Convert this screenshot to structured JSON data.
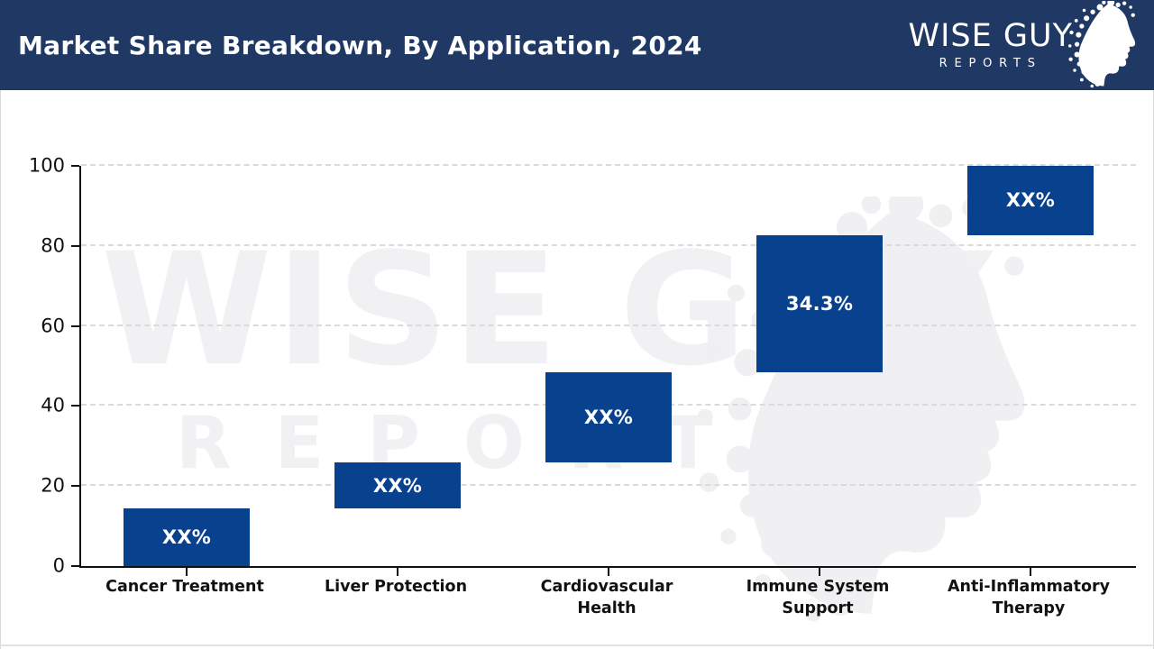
{
  "header": {
    "title": "Market Share Breakdown, By Application, 2024",
    "logo": {
      "line1": "WISE GUY",
      "line2": "REPORTS"
    }
  },
  "chart_data": {
    "type": "bar",
    "subtype": "waterfall-floating-bars",
    "title": "Market Share Breakdown, By Application, 2024",
    "categories": [
      "Cancer Treatment",
      "Liver Protection",
      "Cardiovascular Health",
      "Immune System Support",
      "Anti-Inflammatory Therapy"
    ],
    "segments": [
      {
        "category": "Cancer Treatment",
        "start": 0,
        "end": 14.5,
        "value": 14.5,
        "label": "XX%"
      },
      {
        "category": "Liver Protection",
        "start": 14.5,
        "end": 25.8,
        "value": 11.3,
        "label": "XX%"
      },
      {
        "category": "Cardiovascular Health",
        "start": 25.8,
        "end": 48.4,
        "value": 22.6,
        "label": "XX%"
      },
      {
        "category": "Immune System Support",
        "start": 48.4,
        "end": 82.7,
        "value": 34.3,
        "label": "34.3%"
      },
      {
        "category": "Anti-Inflammatory Therapy",
        "start": 82.7,
        "end": 100,
        "value": 17.3,
        "label": "XX%"
      }
    ],
    "yticks": [
      0,
      20,
      40,
      60,
      80,
      100
    ],
    "ylim": [
      0,
      100
    ],
    "xlabel": "",
    "ylabel": "",
    "grid": true,
    "legend": "none",
    "bar_color": "#08428f",
    "watermark": {
      "line1": "WISE GUY",
      "line2": "REPORTS"
    }
  },
  "colors": {
    "header_bg": "#1f3864",
    "bar": "#08428f",
    "grid": "#dadada",
    "axis": "#111111",
    "watermark": "#f1f1f4",
    "background": "#ffffff"
  }
}
